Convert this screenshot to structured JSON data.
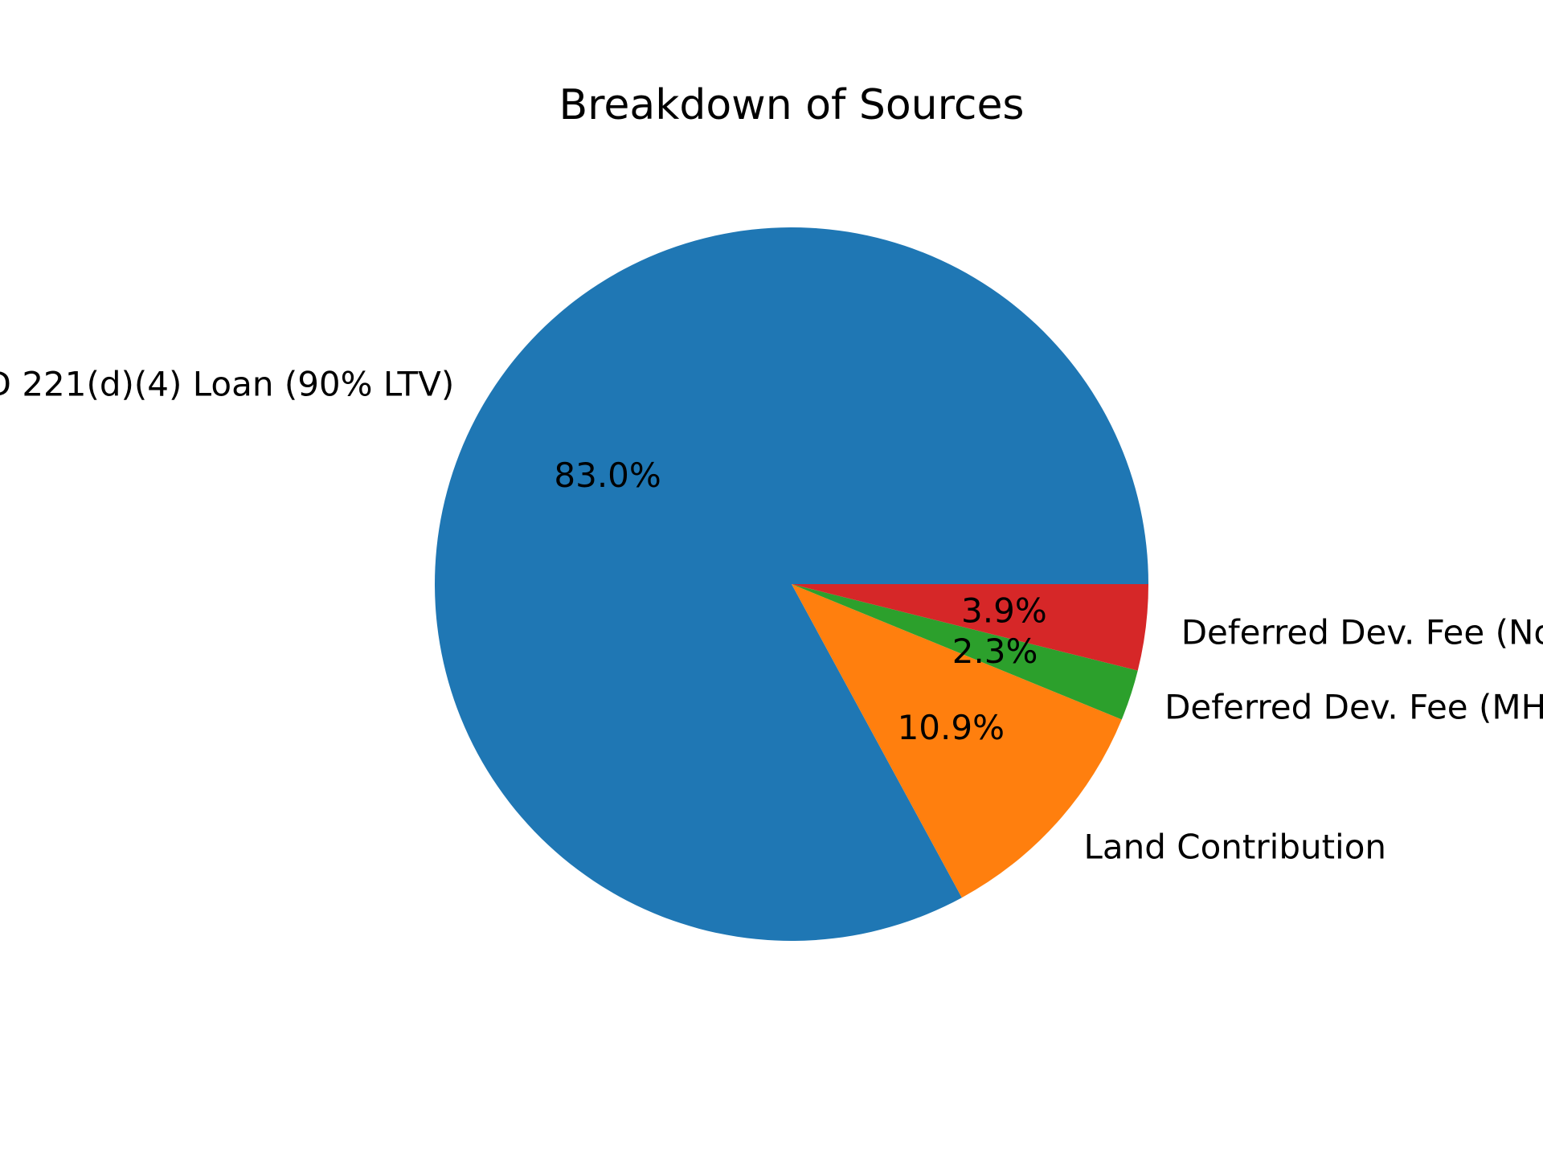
{
  "chart_data": {
    "type": "pie",
    "title": "Breakdown of Sources",
    "background_color": "#ffffff",
    "text_color": "#000000",
    "legend": "none",
    "start_angle_deg": 0,
    "direction": "counterclockwise",
    "slices": [
      {
        "label": "D 221(d)(4) Loan (90% LTV)",
        "label_clipped_at": "left-edge",
        "value_pct": 83.0,
        "pct_label": "83.0%",
        "color": "#1f77b4"
      },
      {
        "label": "Land Contribution",
        "label_clipped_at": "none",
        "value_pct": 10.9,
        "pct_label": "10.9%",
        "color": "#ff7f0e"
      },
      {
        "label": "Deferred Dev. Fee (MH",
        "label_clipped_at": "right-edge",
        "value_pct": 2.3,
        "pct_label": "2.3%",
        "color": "#2ca02c"
      },
      {
        "label": "Deferred Dev. Fee (No",
        "label_clipped_at": "right-edge",
        "value_pct": 3.9,
        "pct_label": "3.9%",
        "color": "#d62728"
      }
    ]
  }
}
